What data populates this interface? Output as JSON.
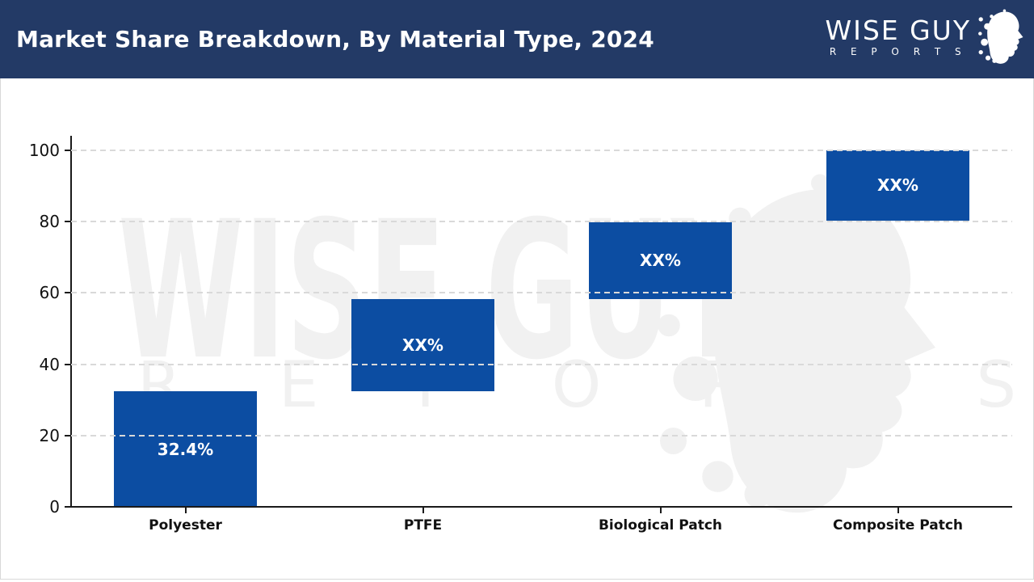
{
  "colors": {
    "header_bg": "#233A66",
    "bar": "#0C4DA2",
    "bar_label": "#FFFFFF",
    "watermark": "#F1F1F1",
    "grid": "#D9D9D9",
    "axis": "#1A1A1A",
    "frame_border": "#D8D8D8"
  },
  "header": {
    "title": "Market Share Breakdown, By Material Type, 2024",
    "logo": {
      "line1": "WISE GUY",
      "line2": "R E P O R T S"
    }
  },
  "watermark": {
    "line1": "WISE GUY",
    "line2": "R E P O R T S"
  },
  "chart_data": {
    "type": "bar",
    "subtype": "waterfall",
    "title": "Market Share Breakdown, By Material Type, 2024",
    "categories": [
      "Polyester",
      "PTFE",
      "Biological Patch",
      "Composite Patch"
    ],
    "bars": [
      {
        "category": "Polyester",
        "start": 0,
        "end": 32.4,
        "label": "32.4%"
      },
      {
        "category": "PTFE",
        "start": 32.4,
        "end": 58.3,
        "label": "XX%"
      },
      {
        "category": "Biological Patch",
        "start": 58.3,
        "end": 79.8,
        "label": "XX%"
      },
      {
        "category": "Composite Patch",
        "start": 80.3,
        "end": 100,
        "label": "XX%"
      }
    ],
    "ylim": [
      0,
      100
    ],
    "yticks": [
      0,
      20,
      40,
      60,
      80,
      100
    ],
    "xlabel": "",
    "ylabel": "",
    "grid": "horizontal-dashed",
    "legend": "none"
  }
}
